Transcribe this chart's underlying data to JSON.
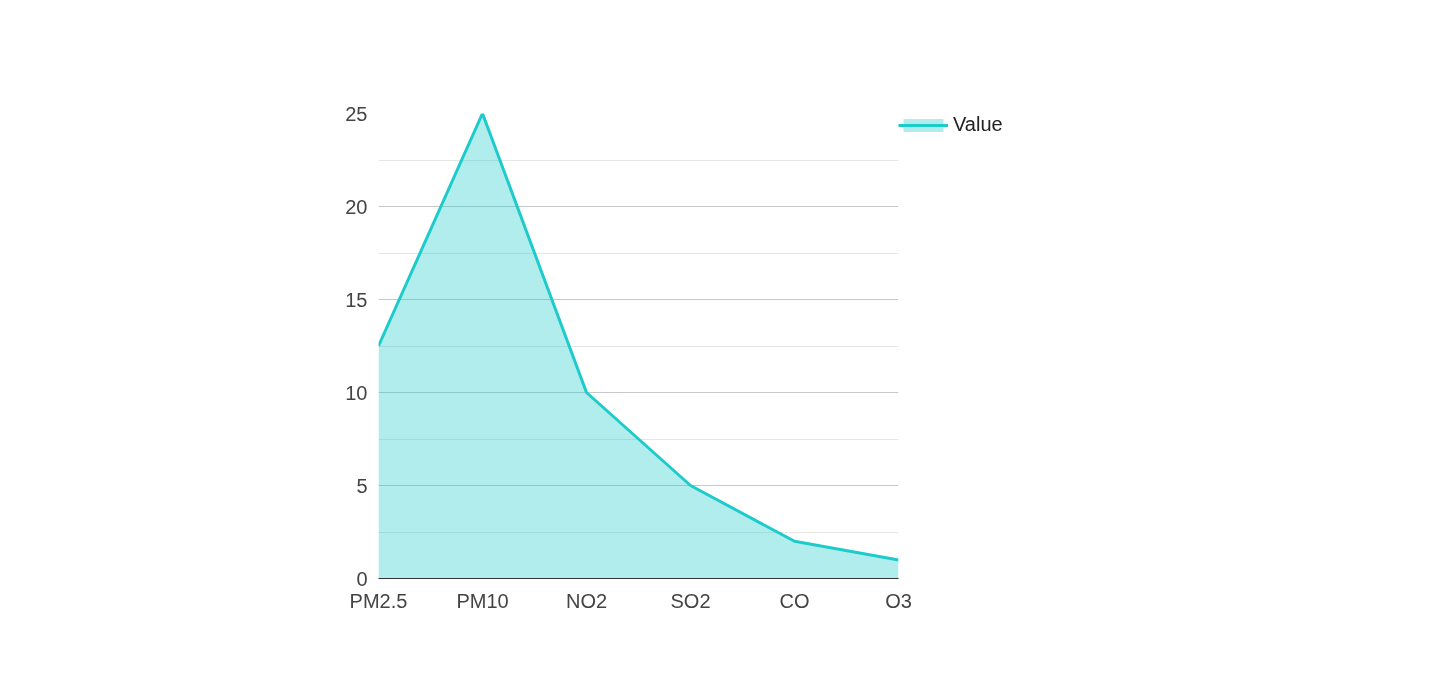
{
  "chart_data": {
    "type": "area",
    "categories": [
      "PM2.5",
      "PM10",
      "NO2",
      "SO2",
      "CO",
      "O3"
    ],
    "series": [
      {
        "name": "Value",
        "color": "#1ecbcb",
        "values": [
          12.5,
          25,
          10,
          5,
          2,
          1
        ]
      }
    ],
    "ylim": [
      0,
      25
    ],
    "yticks": [
      0,
      {
        "value": 2.5,
        "label": null
      },
      5,
      {
        "value": 7.5,
        "label": null
      },
      10,
      {
        "value": 12.5,
        "label": null
      },
      15,
      {
        "value": 17.5,
        "label": null
      },
      20,
      {
        "value": 22.5,
        "label": null
      },
      25
    ],
    "grid": "y",
    "legend": "top right",
    "marker": "none",
    "line_style": "solid"
  }
}
